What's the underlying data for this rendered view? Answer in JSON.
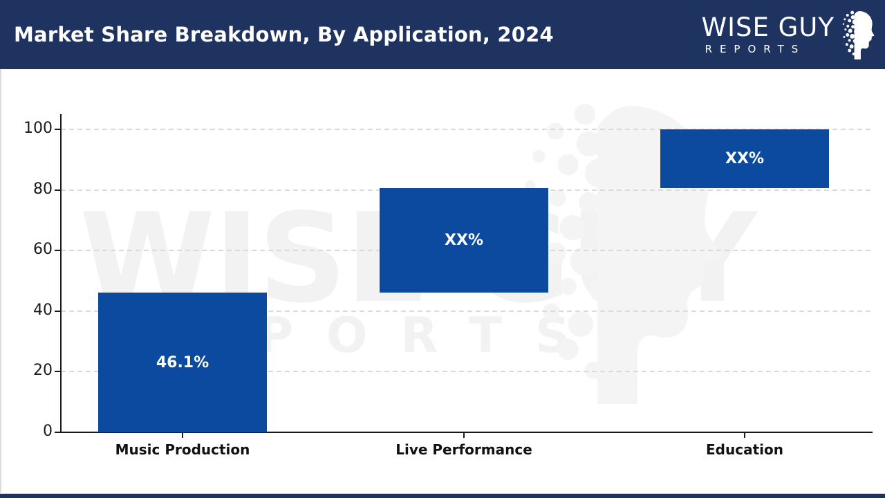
{
  "header": {
    "title": "Market Share Breakdown, By Application, 2024",
    "logo": {
      "line1": "WISE GUY",
      "line2": "REPORTS"
    },
    "bg_color": "#1f3361"
  },
  "watermark": {
    "line1": "WISE GUY",
    "line2": "REPORTS"
  },
  "chart_data": {
    "type": "bar",
    "subtype": "waterfall",
    "title": "Market Share Breakdown, By Application, 2024",
    "categories": [
      "Music Production",
      "Live Performance",
      "Education"
    ],
    "segments": [
      {
        "category": "Music Production",
        "start": 0,
        "end": 46.1,
        "label": "46.1%"
      },
      {
        "category": "Live Performance",
        "start": 46.1,
        "end": 80.6,
        "label": "XX%"
      },
      {
        "category": "Education",
        "start": 80.6,
        "end": 100,
        "label": "XX%"
      }
    ],
    "yticks": [
      0,
      20,
      40,
      60,
      80,
      100
    ],
    "ylim": [
      0,
      105
    ],
    "grid": "horizontal-dashed",
    "legend": "none",
    "bar_color": "#0b4a9e",
    "label_color": "#ffffff",
    "gridline_color": "#d9d9d9",
    "axis_color": "#1a1a1a"
  },
  "footer": {
    "bg_color": "#1f3361"
  }
}
